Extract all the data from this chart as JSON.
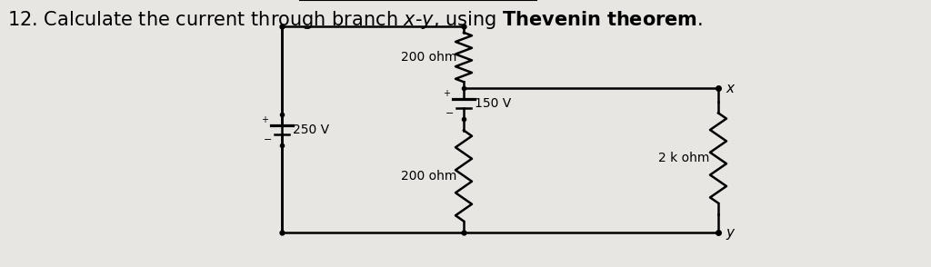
{
  "background_color": "#e8e6e2",
  "circuit_color": "black",
  "label_200ohm_top": "200 ohm",
  "label_250V": "250 V",
  "label_200ohm_bot": "200 ohm",
  "label_150V": "150 V",
  "label_2kohm": "2 k ohm",
  "label_x": "x",
  "label_y": "y",
  "title_fs": 15,
  "circuit_lw": 1.8,
  "label_fs": 10
}
